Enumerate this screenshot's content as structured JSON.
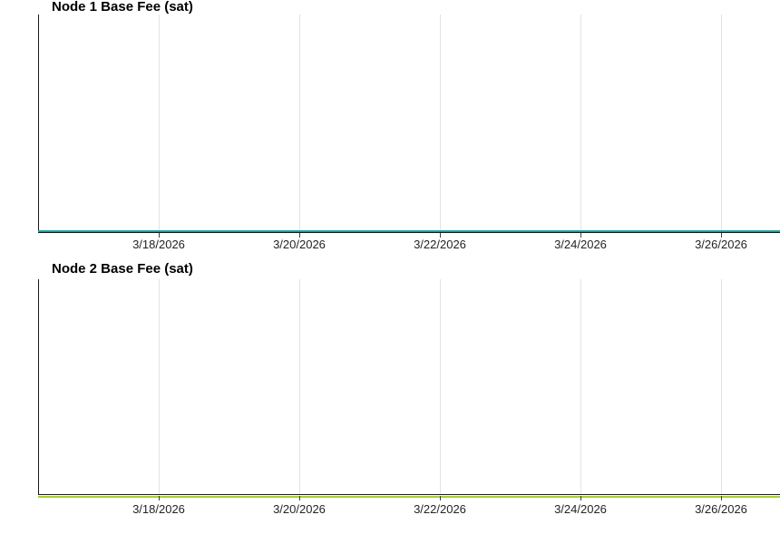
{
  "style": {
    "background": "#FFFFFF",
    "title_color": "#000000",
    "axis_color": "#1A1A1A",
    "gridline_color": "#E3E3E3",
    "tick_label_color": "#252423"
  },
  "chart_data": [
    {
      "type": "line",
      "title": "Node 1 Base Fee (sat)",
      "xlabel": "",
      "ylabel": "",
      "x_tick_labels": [
        "3/18/2026",
        "3/20/2026",
        "3/22/2026",
        "3/24/2026",
        "3/26/2026"
      ],
      "x_axis_range": [
        "3/16/2026",
        "3/27/2026"
      ],
      "grid": "vertical-only",
      "legend": "none",
      "series": [
        {
          "name": "Node 1 Base Fee (sat)",
          "color": "#0FA3A3",
          "values": [
            0,
            0,
            0,
            0,
            0
          ],
          "note": "flat line at 0 along entire x-axis"
        }
      ]
    },
    {
      "type": "line",
      "title": "Node 2 Base Fee (sat)",
      "xlabel": "",
      "ylabel": "",
      "x_tick_labels": [
        "3/18/2026",
        "3/20/2026",
        "3/22/2026",
        "3/24/2026",
        "3/26/2026"
      ],
      "x_axis_range": [
        "3/16/2026",
        "3/27/2026"
      ],
      "grid": "vertical-only",
      "legend": "none",
      "series": [
        {
          "name": "Node 2 Base Fee (sat)",
          "color": "#A9CE38",
          "values": [
            0,
            0,
            0,
            0,
            0
          ],
          "note": "flat line at 0 along entire x-axis"
        }
      ]
    }
  ]
}
